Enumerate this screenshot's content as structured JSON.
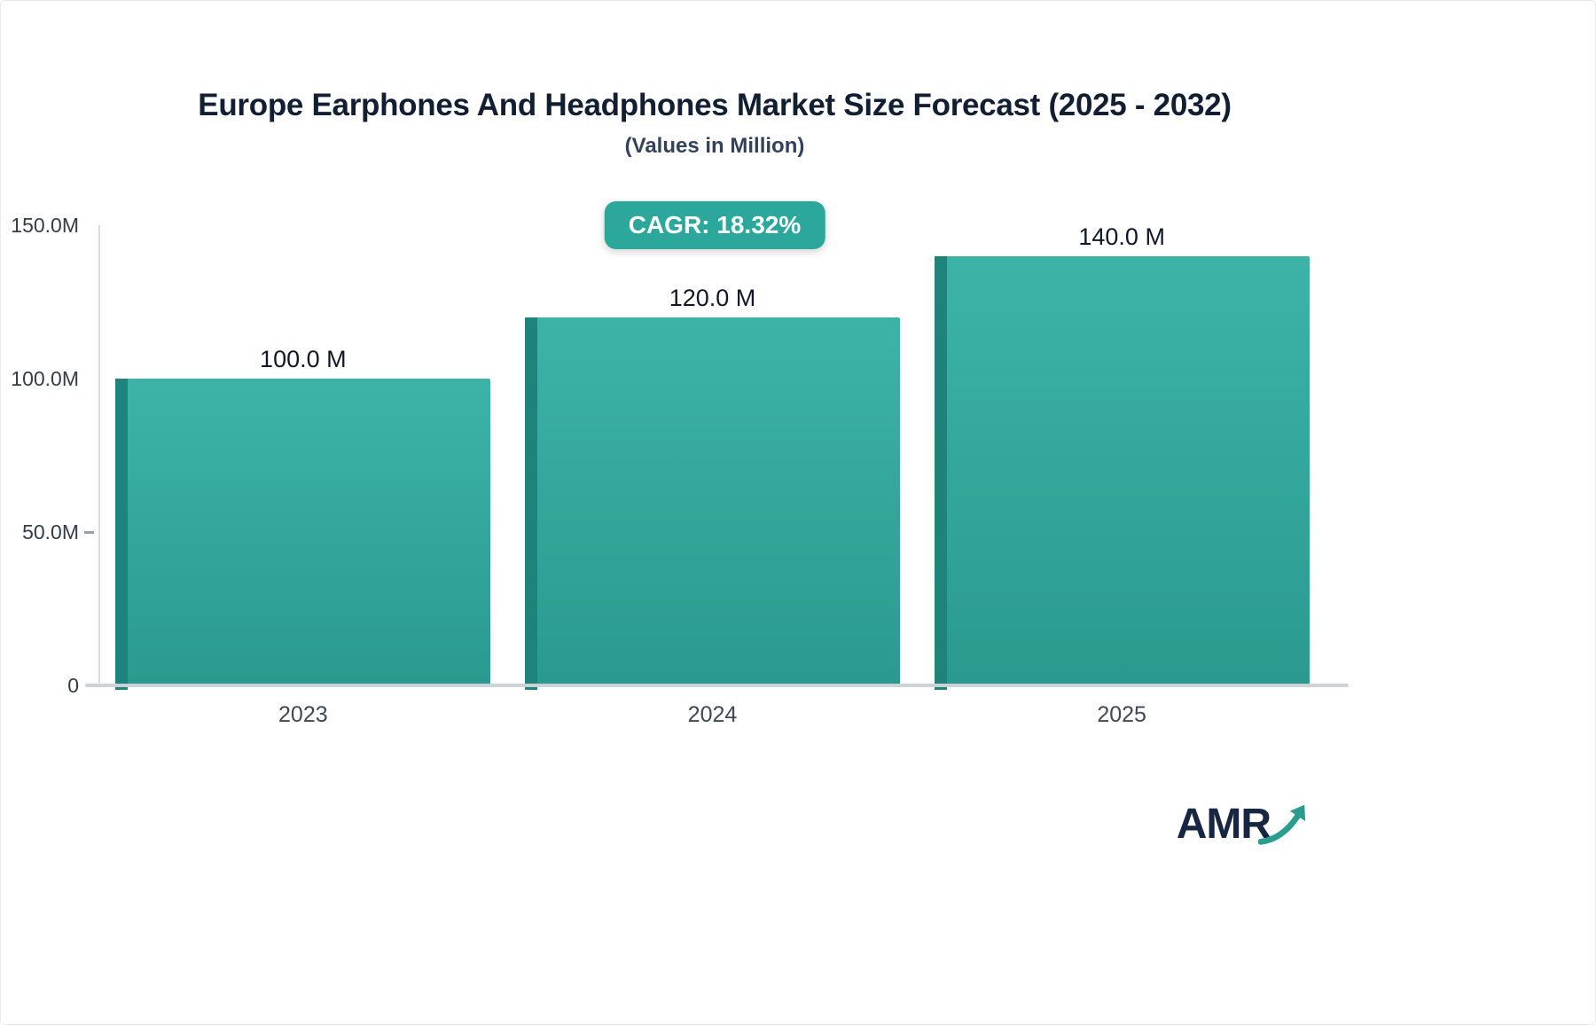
{
  "chart_data": {
    "type": "bar",
    "title": "Europe Earphones And Headphones Market Size Forecast (2025 - 2032)",
    "subtitle": "(Values in Million)",
    "categories": [
      "2023",
      "2024",
      "2025"
    ],
    "values": [
      100.0,
      120.0,
      140.0
    ],
    "value_labels": [
      "100.0 M",
      "120.0 M",
      "140.0 M"
    ],
    "xlabel": "",
    "ylabel": "",
    "ylim": [
      0,
      150
    ],
    "yticks": [
      {
        "value": 150,
        "label": "150.0M",
        "tick": false
      },
      {
        "value": 100,
        "label": "100.0M",
        "tick": false
      },
      {
        "value": 50,
        "label": "50.0M",
        "tick": true
      },
      {
        "value": 0,
        "label": "0",
        "tick": false
      }
    ],
    "grid": false,
    "legend_position": "none",
    "colors": {
      "bar_top": "#3db3a7",
      "bar_bottom": "#2a9a8f",
      "bar_edge": "#1e837b"
    }
  },
  "badge": {
    "text": "CAGR: 18.32%",
    "bg_color": "#2ba79b",
    "text_color": "#ffffff"
  },
  "logo": {
    "text": "AMR",
    "icon": "trend-up-arrow-icon",
    "text_color": "#172742",
    "arrow_color": "#2a9d8f"
  }
}
